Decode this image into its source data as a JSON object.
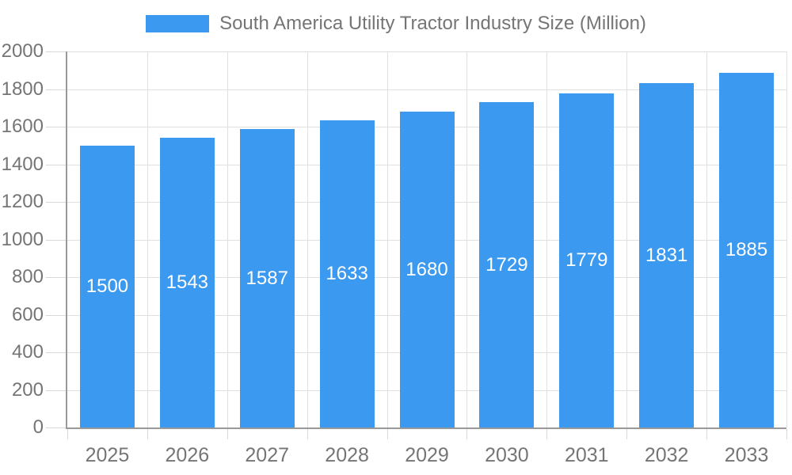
{
  "chart": {
    "legend_label": "South America Utility Tractor Industry Size (Million)"
  },
  "chart_data": {
    "type": "bar",
    "title": "South America Utility Tractor Industry Size (Million)",
    "categories": [
      "2025",
      "2026",
      "2027",
      "2028",
      "2029",
      "2030",
      "2031",
      "2032",
      "2033"
    ],
    "values": [
      1500,
      1543,
      1587,
      1633,
      1680,
      1729,
      1779,
      1831,
      1885
    ],
    "series": [
      {
        "name": "South America Utility Tractor Industry Size (Million)",
        "values": [
          1500,
          1543,
          1587,
          1633,
          1680,
          1729,
          1779,
          1831,
          1885
        ]
      }
    ],
    "xlabel": "",
    "ylabel": "",
    "ylim": [
      0,
      2000
    ],
    "ytick_step": 200,
    "yticks": [
      0,
      200,
      400,
      600,
      800,
      1000,
      1200,
      1400,
      1600,
      1800,
      2000
    ],
    "grid": true,
    "legend_position": "top",
    "value_labels": "inside-center",
    "bar_color": "#3B99F0",
    "value_label_color": "#FFFFFF",
    "axis_text_color": "#757575",
    "gridline_color": "#E0E0E0",
    "tick_color": "#D9D9D9",
    "axis_line_color": "#999999",
    "background_color": "#FFFFFF"
  }
}
